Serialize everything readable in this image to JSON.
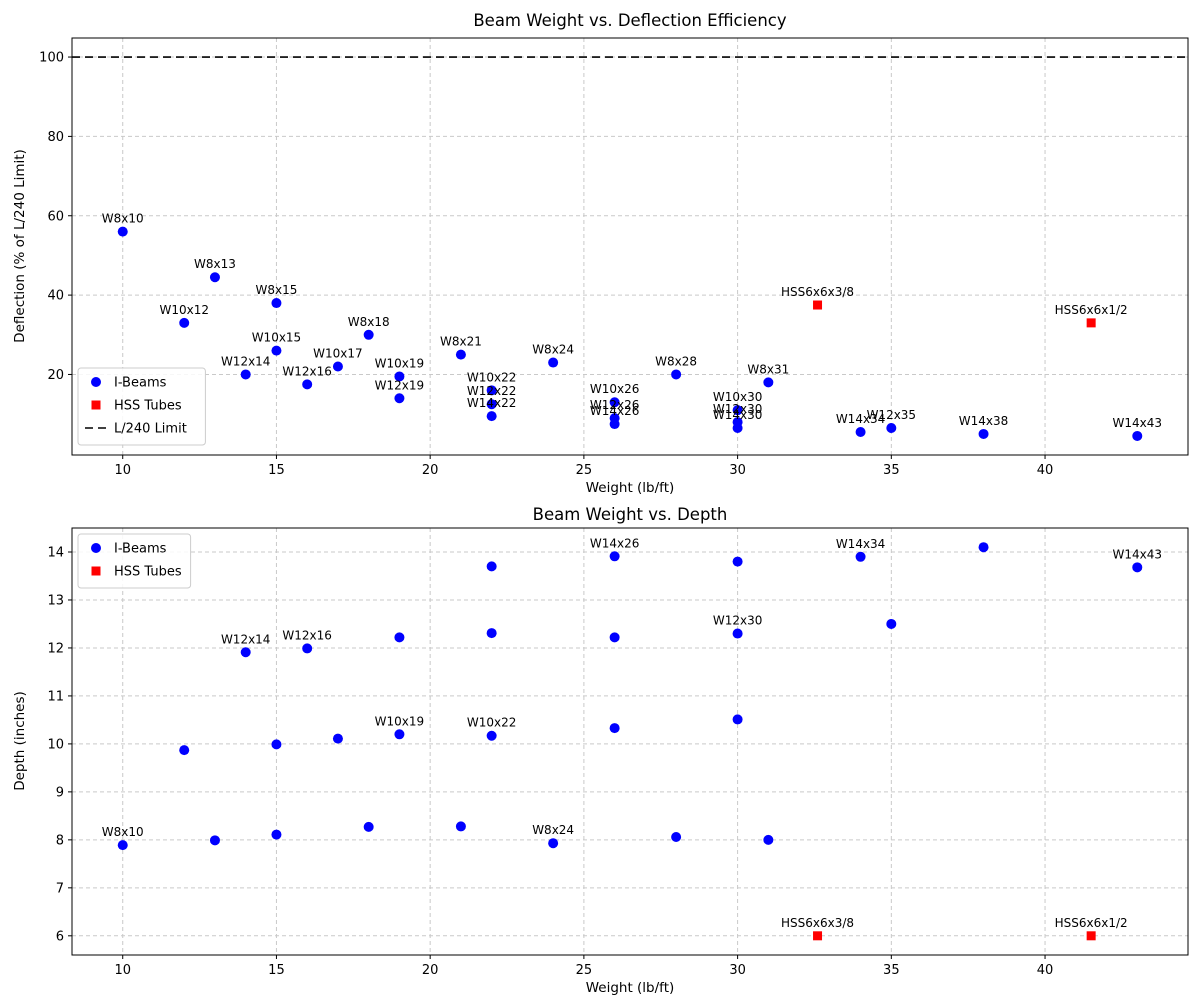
{
  "figure": {
    "background": "#ffffff"
  },
  "chart_data": [
    {
      "type": "scatter",
      "title": "Beam Weight vs. Deflection Efficiency",
      "xlabel": "Weight (lb/ft)",
      "ylabel": "Deflection (% of L/240 Limit)",
      "xlim": [
        8.35,
        44.65
      ],
      "ylim": [
        -0.3,
        104.8
      ],
      "xticks": [
        10,
        15,
        20,
        25,
        30,
        35,
        40
      ],
      "yticks": [
        20,
        40,
        60,
        80,
        100
      ],
      "grid": true,
      "hline": {
        "y": 100,
        "color": "#000000",
        "style": "dashed",
        "label": "L/240 Limit"
      },
      "legend": {
        "position": "lower-left",
        "entries": [
          {
            "label": "I-Beams",
            "marker": "circle",
            "color": "#0000ff"
          },
          {
            "label": "HSS Tubes",
            "marker": "square",
            "color": "#ff0000"
          },
          {
            "label": "L/240 Limit",
            "marker": "dashed-line",
            "color": "#000000"
          }
        ]
      },
      "series": [
        {
          "name": "I-Beams",
          "marker": "circle",
          "color": "#0000ff",
          "points": [
            {
              "label": "W8x10",
              "x": 10,
              "y": 56,
              "labeled": true
            },
            {
              "label": "W10x12",
              "x": 12,
              "y": 33,
              "labeled": true
            },
            {
              "label": "W8x13",
              "x": 13,
              "y": 44.5,
              "labeled": true
            },
            {
              "label": "W12x14",
              "x": 14,
              "y": 20,
              "labeled": true
            },
            {
              "label": "W8x15",
              "x": 15,
              "y": 38,
              "labeled": true
            },
            {
              "label": "W10x15",
              "x": 15,
              "y": 26,
              "labeled": true
            },
            {
              "label": "W12x16",
              "x": 16,
              "y": 17.5,
              "labeled": true
            },
            {
              "label": "W10x17",
              "x": 17,
              "y": 22,
              "labeled": true
            },
            {
              "label": "W8x18",
              "x": 18,
              "y": 30,
              "labeled": true
            },
            {
              "label": "W10x19",
              "x": 19,
              "y": 19.5,
              "labeled": true
            },
            {
              "label": "W12x19",
              "x": 19,
              "y": 14,
              "labeled": true
            },
            {
              "label": "W8x21",
              "x": 21,
              "y": 25,
              "labeled": true
            },
            {
              "label": "W10x22",
              "x": 22,
              "y": 16,
              "labeled": true
            },
            {
              "label": "W12x22",
              "x": 22,
              "y": 12.5,
              "labeled": true
            },
            {
              "label": "W14x22",
              "x": 22,
              "y": 9.5,
              "labeled": true
            },
            {
              "label": "W8x24",
              "x": 24,
              "y": 23,
              "labeled": true
            },
            {
              "label": "W10x26",
              "x": 26,
              "y": 13,
              "labeled": true
            },
            {
              "label": "W12x26",
              "x": 26,
              "y": 9,
              "labeled": true
            },
            {
              "label": "W14x26",
              "x": 26,
              "y": 7.5,
              "labeled": true
            },
            {
              "label": "W8x28",
              "x": 28,
              "y": 20,
              "labeled": true
            },
            {
              "label": "W10x30",
              "x": 30,
              "y": 11,
              "labeled": true
            },
            {
              "label": "W12x30",
              "x": 30,
              "y": 8,
              "labeled": true
            },
            {
              "label": "W14x30",
              "x": 30,
              "y": 6.5,
              "labeled": true
            },
            {
              "label": "W8x31",
              "x": 31,
              "y": 18,
              "labeled": true
            },
            {
              "label": "W14x34",
              "x": 34,
              "y": 5.5,
              "labeled": true
            },
            {
              "label": "W12x35",
              "x": 35,
              "y": 6.5,
              "labeled": true
            },
            {
              "label": "W14x38",
              "x": 38,
              "y": 5,
              "labeled": true
            },
            {
              "label": "W14x43",
              "x": 43,
              "y": 4.5,
              "labeled": true
            }
          ]
        },
        {
          "name": "HSS Tubes",
          "marker": "square",
          "color": "#ff0000",
          "points": [
            {
              "label": "HSS6x6x3/8",
              "x": 32.6,
              "y": 37.5,
              "labeled": true
            },
            {
              "label": "HSS6x6x1/2",
              "x": 41.5,
              "y": 33,
              "labeled": true
            }
          ]
        }
      ]
    },
    {
      "type": "scatter",
      "title": "Beam Weight vs. Depth",
      "xlabel": "Weight (lb/ft)",
      "ylabel": "Depth (inches)",
      "xlim": [
        8.35,
        44.65
      ],
      "ylim": [
        5.6,
        14.5
      ],
      "xticks": [
        10,
        15,
        20,
        25,
        30,
        35,
        40
      ],
      "yticks": [
        6,
        7,
        8,
        9,
        10,
        11,
        12,
        13,
        14
      ],
      "grid": true,
      "legend": {
        "position": "upper-left",
        "entries": [
          {
            "label": "I-Beams",
            "marker": "circle",
            "color": "#0000ff"
          },
          {
            "label": "HSS Tubes",
            "marker": "square",
            "color": "#ff0000"
          }
        ]
      },
      "series": [
        {
          "name": "I-Beams",
          "marker": "circle",
          "color": "#0000ff",
          "points": [
            {
              "label": "W8x10",
              "x": 10,
              "y": 7.89,
              "labeled": true
            },
            {
              "label": "W10x12",
              "x": 12,
              "y": 9.87,
              "labeled": false
            },
            {
              "label": "W8x13",
              "x": 13,
              "y": 7.99,
              "labeled": false
            },
            {
              "label": "W12x14",
              "x": 14,
              "y": 11.91,
              "labeled": true
            },
            {
              "label": "W8x15",
              "x": 15,
              "y": 8.11,
              "labeled": false
            },
            {
              "label": "W10x15",
              "x": 15,
              "y": 9.99,
              "labeled": false
            },
            {
              "label": "W12x16",
              "x": 16,
              "y": 11.99,
              "labeled": true
            },
            {
              "label": "W10x17",
              "x": 17,
              "y": 10.11,
              "labeled": false
            },
            {
              "label": "W8x18",
              "x": 18,
              "y": 8.27,
              "labeled": false
            },
            {
              "label": "W10x19",
              "x": 19,
              "y": 10.2,
              "labeled": true
            },
            {
              "label": "W12x19",
              "x": 19,
              "y": 12.22,
              "labeled": false
            },
            {
              "label": "W8x21",
              "x": 21,
              "y": 8.28,
              "labeled": false
            },
            {
              "label": "W10x22",
              "x": 22,
              "y": 10.17,
              "labeled": true
            },
            {
              "label": "W12x22",
              "x": 22,
              "y": 12.31,
              "labeled": false
            },
            {
              "label": "W14x22",
              "x": 22,
              "y": 13.7,
              "labeled": false
            },
            {
              "label": "W8x24",
              "x": 24,
              "y": 7.93,
              "labeled": true
            },
            {
              "label": "W10x26",
              "x": 26,
              "y": 10.33,
              "labeled": false
            },
            {
              "label": "W12x26",
              "x": 26,
              "y": 12.22,
              "labeled": false
            },
            {
              "label": "W14x26",
              "x": 26,
              "y": 13.91,
              "labeled": true
            },
            {
              "label": "W8x28",
              "x": 28,
              "y": 8.06,
              "labeled": false
            },
            {
              "label": "W10x30",
              "x": 30,
              "y": 10.51,
              "labeled": false
            },
            {
              "label": "W12x30",
              "x": 30,
              "y": 12.3,
              "labeled": true
            },
            {
              "label": "W14x30",
              "x": 30,
              "y": 13.8,
              "labeled": false
            },
            {
              "label": "W8x31",
              "x": 31,
              "y": 8.0,
              "labeled": false
            },
            {
              "label": "W14x34",
              "x": 34,
              "y": 13.9,
              "labeled": true
            },
            {
              "label": "W12x35",
              "x": 35,
              "y": 12.5,
              "labeled": false
            },
            {
              "label": "W14x38",
              "x": 38,
              "y": 14.1,
              "labeled": false
            },
            {
              "label": "W14x43",
              "x": 43,
              "y": 13.68,
              "labeled": true
            }
          ]
        },
        {
          "name": "HSS Tubes",
          "marker": "square",
          "color": "#ff0000",
          "points": [
            {
              "label": "HSS6x6x3/8",
              "x": 32.6,
              "y": 6.0,
              "labeled": true
            },
            {
              "label": "HSS6x6x1/2",
              "x": 41.5,
              "y": 6.0,
              "labeled": true
            }
          ]
        }
      ]
    }
  ]
}
